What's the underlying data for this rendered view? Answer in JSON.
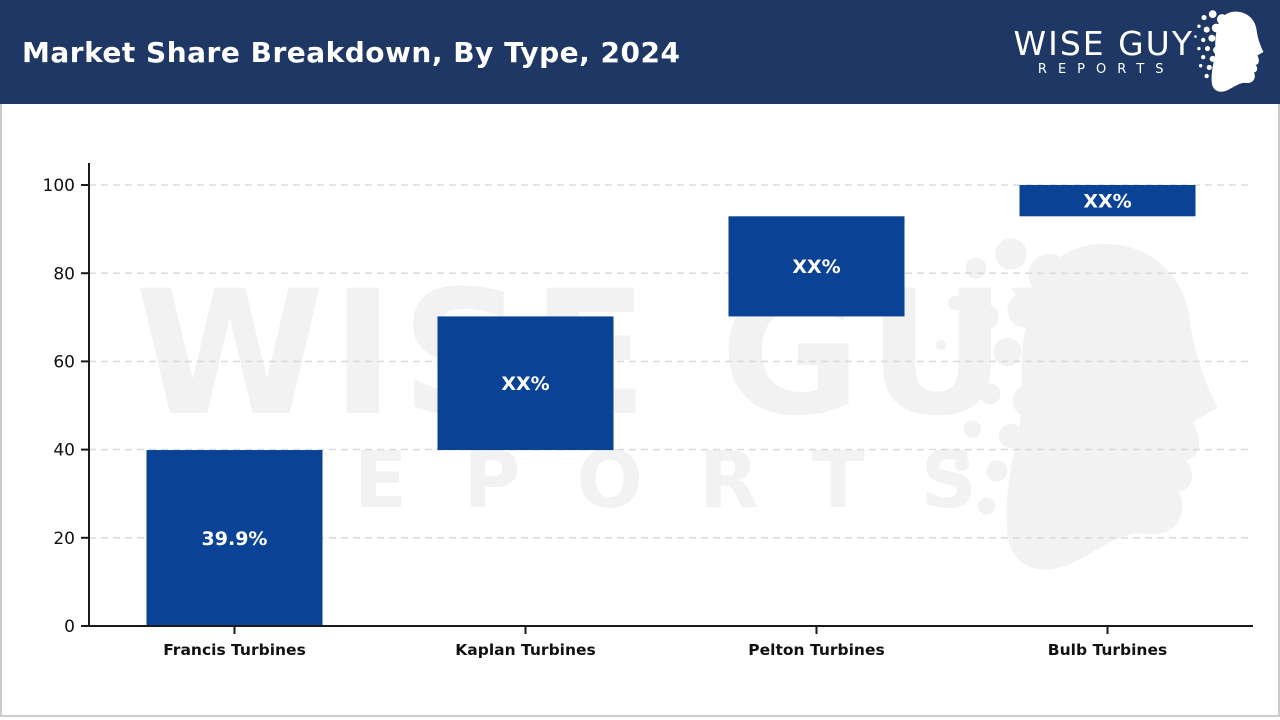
{
  "header": {
    "title": "Market Share Breakdown, By Type, 2024",
    "logo": {
      "line1": "WISE GUY",
      "line2": "REPORTS"
    }
  },
  "watermark": {
    "line1": "WISE GUY",
    "line2": "REPORTS"
  },
  "colors": {
    "header_bg": "#1F3764",
    "bar": "#0A4295",
    "bar_label": "#FFFFFF",
    "grid": "#DCDCDC",
    "axis": "#1A1A1A",
    "tick_label": "#111111",
    "card_border": "#CCCCCC",
    "watermark": "#F2F2F2"
  },
  "chart_data": {
    "type": "bar",
    "variant": "floating-segment-waterfall",
    "title": "Market Share Breakdown, By Type, 2024",
    "categories": [
      "Francis Turbines",
      "Kaplan Turbines",
      "Pelton Turbines",
      "Bulb Turbines"
    ],
    "segments": [
      {
        "category": "Francis Turbines",
        "start": 0,
        "end": 39.9,
        "label": "39.9%"
      },
      {
        "category": "Kaplan Turbines",
        "start": 39.9,
        "end": 70.2,
        "label": "XX%"
      },
      {
        "category": "Pelton Turbines",
        "start": 70.2,
        "end": 92.9,
        "label": "XX%"
      },
      {
        "category": "Bulb Turbines",
        "start": 92.9,
        "end": 100,
        "label": "XX%"
      }
    ],
    "yticks": [
      0,
      20,
      40,
      60,
      80,
      100
    ],
    "ylim": [
      0,
      105
    ],
    "xlabel": "",
    "ylabel": "",
    "grid": "horizontal-dashed",
    "legend": "none"
  }
}
